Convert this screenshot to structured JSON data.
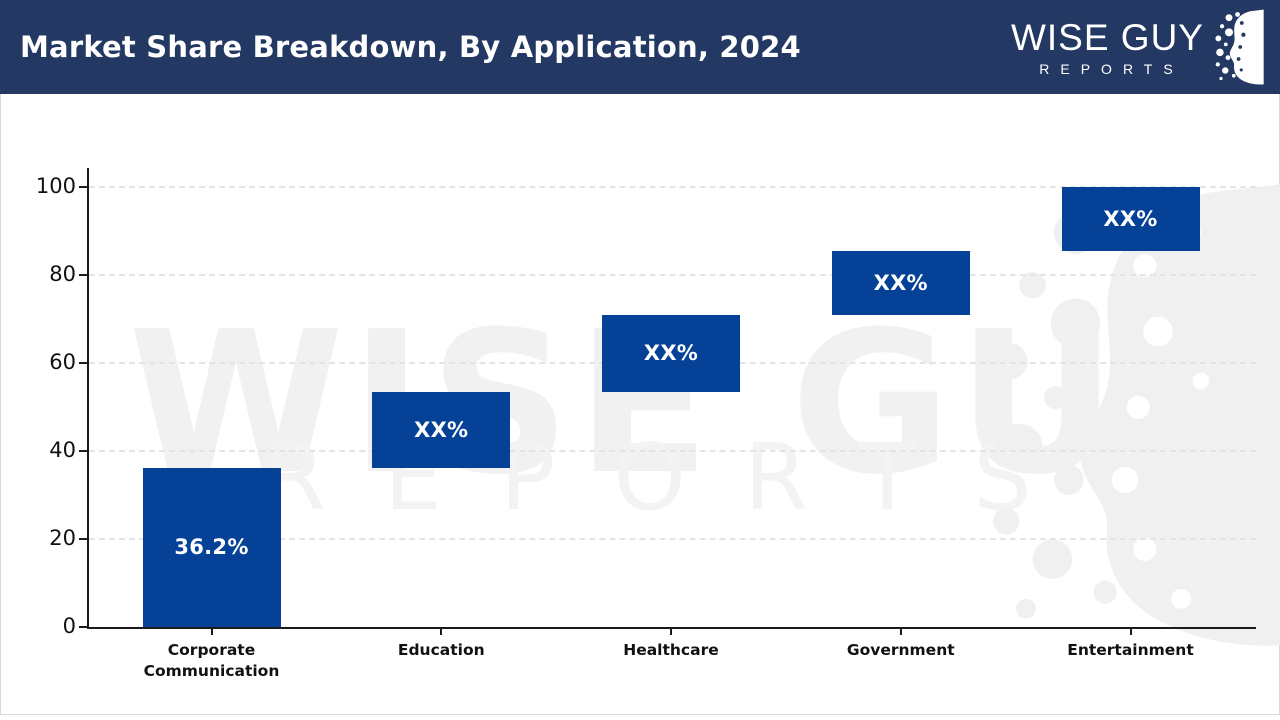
{
  "header": {
    "title": "Market Share Breakdown, By Application, 2024",
    "logo": {
      "line1": "WISE GUY",
      "line2": "REPORTS"
    }
  },
  "watermark": {
    "line1": "WISE GUY",
    "line2": "REPORTS"
  },
  "colors": {
    "header_bg": "#233862",
    "bar": "#054297",
    "bar_label": "#ffffff",
    "grid": "#e4e4e4",
    "axis": "#1a1a1a",
    "watermark": "#f1f1f1"
  },
  "chart_data": {
    "type": "bar",
    "subtype": "waterfall",
    "title": "Market Share Breakdown, By Application, 2024",
    "categories": [
      "Corporate\nCommunication",
      "Education",
      "Healthcare",
      "Government",
      "Entertainment"
    ],
    "segments": [
      {
        "category": "Corporate Communication",
        "start": 0,
        "end": 36.2,
        "label": "36.2%"
      },
      {
        "category": "Education",
        "start": 36.2,
        "end": 53.5,
        "label": "XX%"
      },
      {
        "category": "Healthcare",
        "start": 53.5,
        "end": 71,
        "label": "XX%"
      },
      {
        "category": "Government",
        "start": 71,
        "end": 85.5,
        "label": "XX%"
      },
      {
        "category": "Entertainment",
        "start": 85.5,
        "end": 100,
        "label": "XX%"
      }
    ],
    "yticks": [
      0,
      20,
      40,
      60,
      80,
      100
    ],
    "ylim": [
      0,
      105
    ],
    "xlabel": "",
    "ylabel": "",
    "grid": "horizontal-dashed",
    "legend": "none"
  }
}
